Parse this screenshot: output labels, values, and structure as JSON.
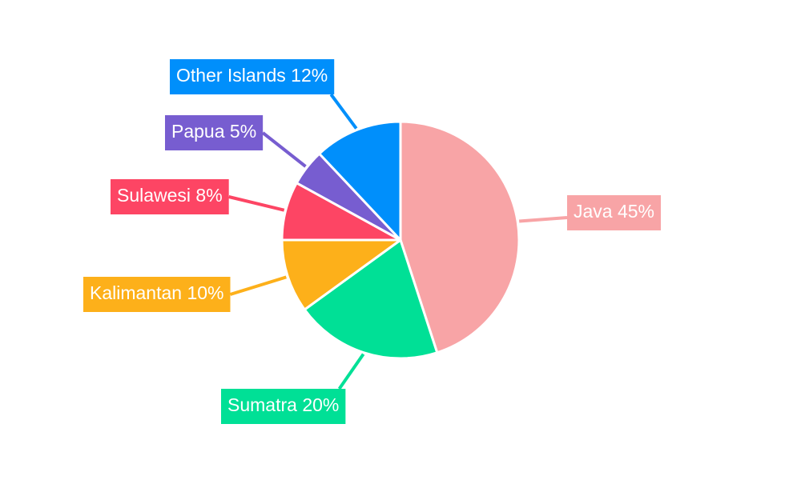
{
  "chart_data": {
    "type": "pie",
    "slices": [
      {
        "name": "Java",
        "value": 45,
        "label": "Java 45%",
        "color": "#f8a4a6"
      },
      {
        "name": "Sumatra",
        "value": 20,
        "label": "Sumatra 20%",
        "color": "#00e096"
      },
      {
        "name": "Kalimantan",
        "value": 10,
        "label": "Kalimantan 10%",
        "color": "#fdb01a"
      },
      {
        "name": "Sulawesi",
        "value": 8,
        "label": "Sulawesi 8%",
        "color": "#fd4564"
      },
      {
        "name": "Papua",
        "value": 5,
        "label": "Papua 5%",
        "color": "#775dd0"
      },
      {
        "name": "Other Islands",
        "value": 12,
        "label": "Other Islands 12%",
        "color": "#008ffb"
      }
    ],
    "start_angle_deg": 0,
    "direction": "clockwise",
    "legend": "none",
    "labels": "callout"
  }
}
